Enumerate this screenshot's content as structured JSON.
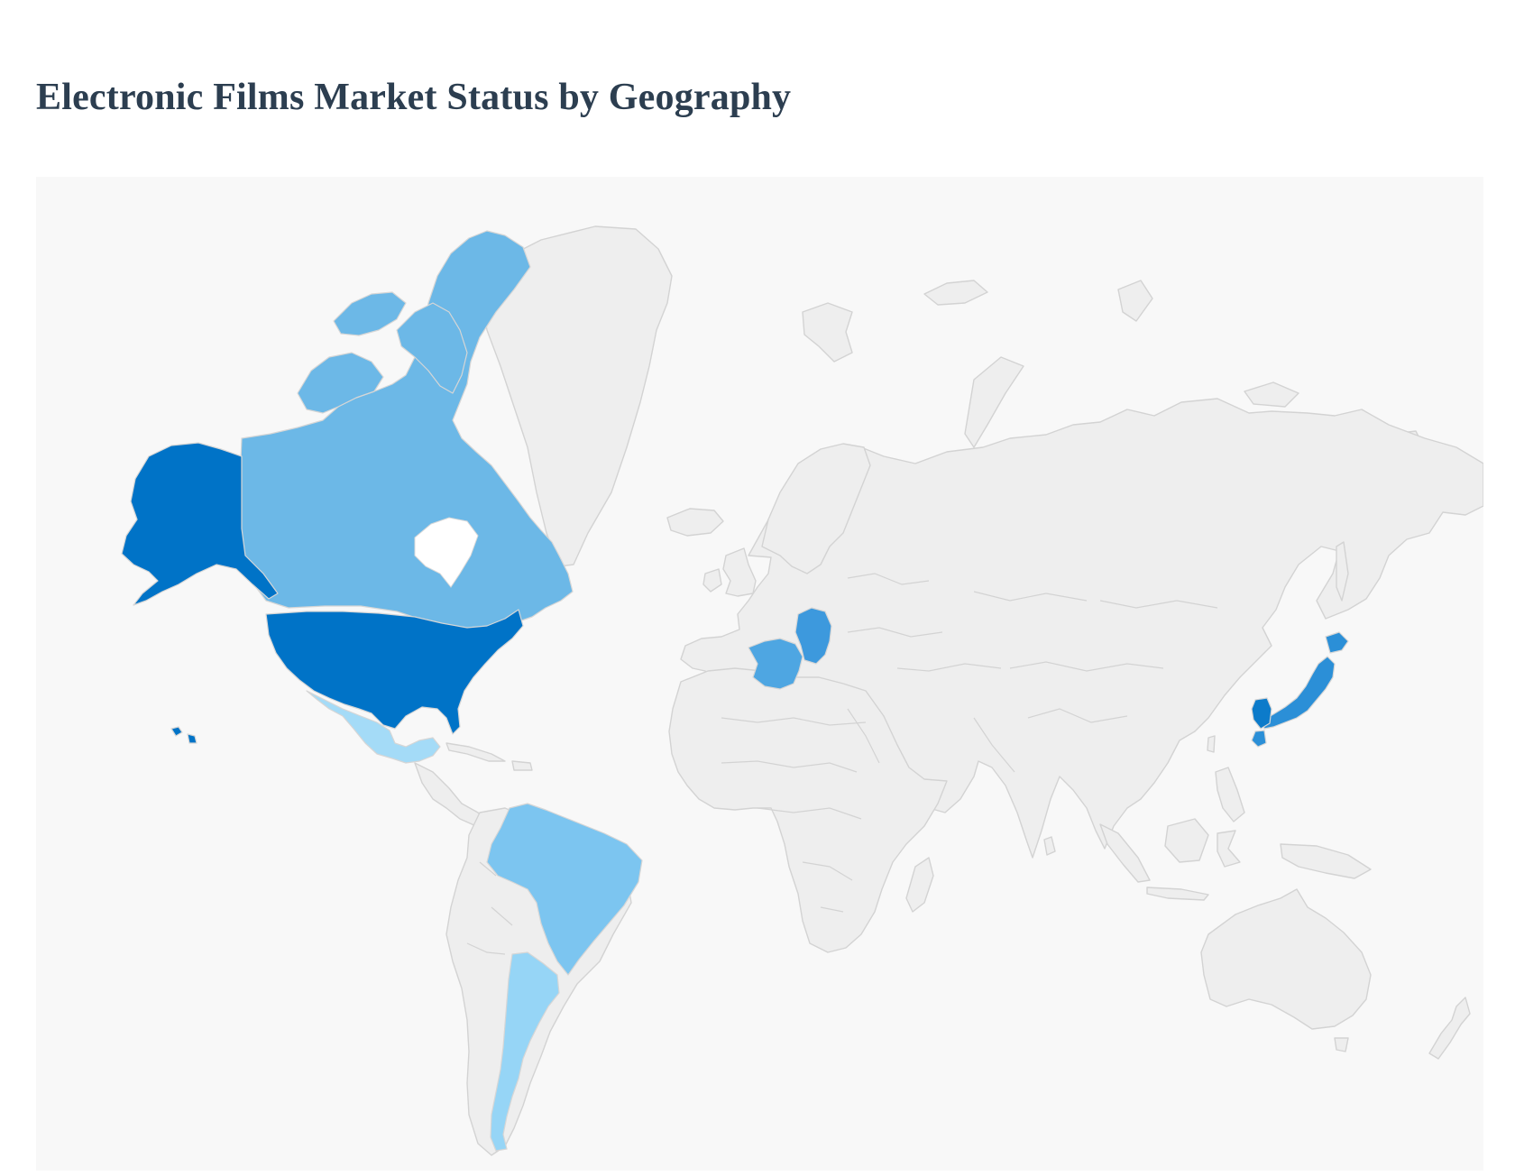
{
  "title": "Electronic Films Market Status by Geography",
  "colors": {
    "background": "#f8f8f8",
    "no_data": "#eeeeee",
    "title": "#2c3e50"
  },
  "regions": {
    "united_states": {
      "fill": "#0073c7"
    },
    "canada": {
      "fill": "#6cb8e7"
    },
    "mexico": {
      "fill": "#a4dbf7"
    },
    "brazil": {
      "fill": "#7cc5f0"
    },
    "argentina": {
      "fill": "#96d5f6"
    },
    "france": {
      "fill": "#4ea6e2"
    },
    "germany": {
      "fill": "#3d99dd"
    },
    "japan": {
      "fill": "#2b8fd7"
    },
    "south_korea": {
      "fill": "#0c7bca"
    }
  }
}
